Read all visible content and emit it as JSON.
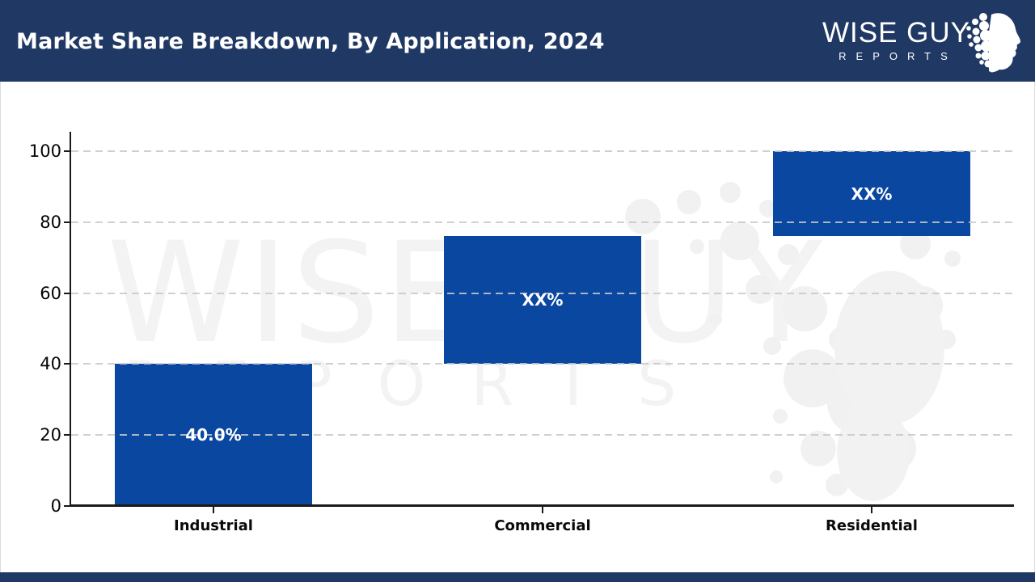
{
  "header": {
    "title": "Market Share Breakdown, By Application, 2024",
    "logo": {
      "wordmark": "WISE GUY",
      "subtext": "REPORTS"
    }
  },
  "colors": {
    "navy": "#203864",
    "bar_blue": "#0a47a0",
    "axis": "#1a1a1a",
    "watermark_gray": "#f2f2f2"
  },
  "watermark": {
    "line1": "WISE GUY",
    "line2": "REPORTS"
  },
  "chart_data": {
    "type": "bar",
    "variant": "floating-waterfall",
    "title": "Market Share Breakdown, By Application, 2024",
    "categories": [
      "Industrial",
      "Commercial",
      "Residential"
    ],
    "segments": [
      {
        "category": "Industrial",
        "start": 0,
        "end": 40,
        "label": "40.0%"
      },
      {
        "category": "Commercial",
        "start": 40,
        "end": 76,
        "label": "XX%"
      },
      {
        "category": "Residential",
        "start": 76,
        "end": 100,
        "label": "XX%"
      }
    ],
    "ylim": [
      0,
      100
    ],
    "yticks": [
      0,
      20,
      40,
      60,
      80,
      100
    ],
    "grid": {
      "horizontal": true,
      "style": "dashed"
    },
    "legend": "none",
    "bar_color": "#0a47a0",
    "bar_label_color": "#ffffff"
  }
}
